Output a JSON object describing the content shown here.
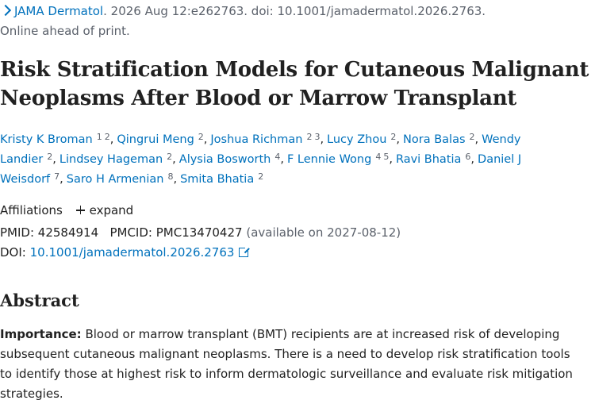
{
  "citation": {
    "journal": "JAMA Dermatol",
    "details": ". 2026 Aug 12:e262763. doi: 10.1001/jamadermatol.2026.2763.",
    "status": "Online ahead of print."
  },
  "title": "Risk Stratification Models for Cutaneous Malignant Neoplasms After Blood or Marrow Transplant",
  "authors": [
    {
      "name": "Kristy K Broman",
      "aff": [
        "1",
        "2"
      ]
    },
    {
      "name": "Qingrui Meng",
      "aff": [
        "2"
      ]
    },
    {
      "name": "Joshua Richman",
      "aff": [
        "2",
        "3"
      ]
    },
    {
      "name": "Lucy Zhou",
      "aff": [
        "2"
      ]
    },
    {
      "name": "Nora Balas",
      "aff": [
        "2"
      ]
    },
    {
      "name": "Wendy Landier",
      "aff": [
        "2"
      ]
    },
    {
      "name": "Lindsey Hageman",
      "aff": [
        "2"
      ]
    },
    {
      "name": "Alysia Bosworth",
      "aff": [
        "4"
      ]
    },
    {
      "name": "F Lennie Wong",
      "aff": [
        "4",
        "5"
      ]
    },
    {
      "name": "Ravi Bhatia",
      "aff": [
        "6"
      ]
    },
    {
      "name": "Daniel J Weisdorf",
      "aff": [
        "7"
      ]
    },
    {
      "name": "Saro H Armenian",
      "aff": [
        "8"
      ]
    },
    {
      "name": "Smita Bhatia",
      "aff": [
        "2"
      ]
    }
  ],
  "affiliations": {
    "label": "Affiliations",
    "expand_label": "expand"
  },
  "identifiers": {
    "pmid_label": "PMID:",
    "pmid": "42584914",
    "pmcid_label": "PMCID:",
    "pmcid": "PMC13470427",
    "availability": "(available on 2027-08-12)",
    "doi_label": "DOI:",
    "doi": "10.1001/jamadermatol.2026.2763"
  },
  "abstract": {
    "heading": "Abstract",
    "importance_label": "Importance:",
    "importance_text": " Blood or marrow transplant (BMT) recipients are at increased risk of developing subsequent cutaneous malignant neoplasms. There is a need to develop risk stratification tools to identify those at highest risk to inform dermatologic surveillance and evaluate risk mitigation strategies."
  },
  "colors": {
    "link": "#0071bc",
    "muted": "#5b616b",
    "text": "#212121"
  },
  "icons": {
    "journal": "chevron-right-icon",
    "expand": "plus-icon",
    "doi": "external-link-icon"
  }
}
